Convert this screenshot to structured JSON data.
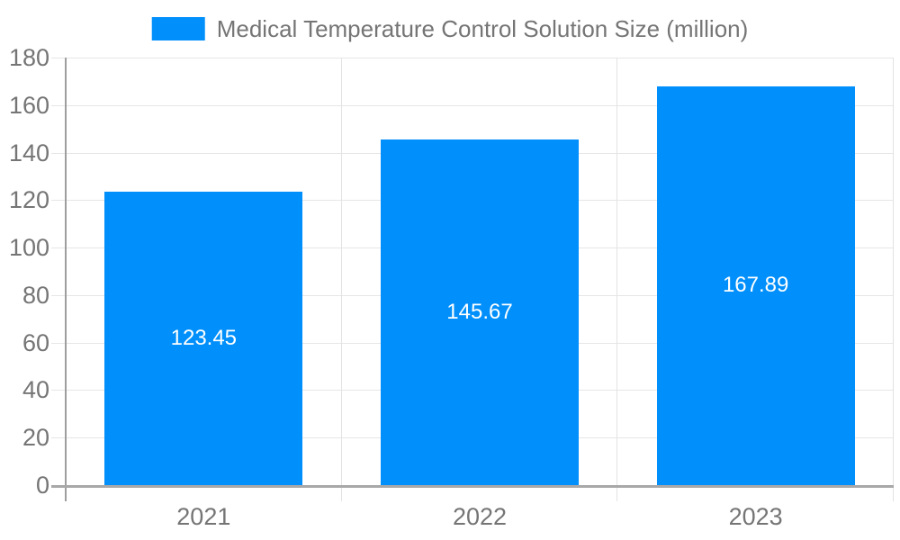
{
  "chart_data": {
    "type": "bar",
    "title": "",
    "legend": "Medical Temperature Control Solution Size (million)",
    "legend_position": "top",
    "categories": [
      "2021",
      "2022",
      "2023"
    ],
    "series": [
      {
        "name": "Medical Temperature Control Solution Size (million)",
        "values": [
          123.45,
          145.67,
          167.89
        ]
      }
    ],
    "value_labels": [
      "123.45",
      "145.67",
      "167.89"
    ],
    "xlabel": "",
    "ylabel": "",
    "ylim": [
      0,
      180
    ],
    "ytick_step": 20,
    "ytick_labels": [
      "0",
      "20",
      "40",
      "60",
      "80",
      "100",
      "120",
      "140",
      "160",
      "180"
    ],
    "grid": true,
    "colors": {
      "bar": "#008ffb",
      "axis_text": "#757575",
      "grid_line": "#e6e6e6",
      "separator_line": "#e2e2e2",
      "y_axis_line": "#9e9e9e",
      "baseline": "#a8a8a8",
      "value_text": "#ffffff",
      "background": "#ffffff"
    }
  }
}
